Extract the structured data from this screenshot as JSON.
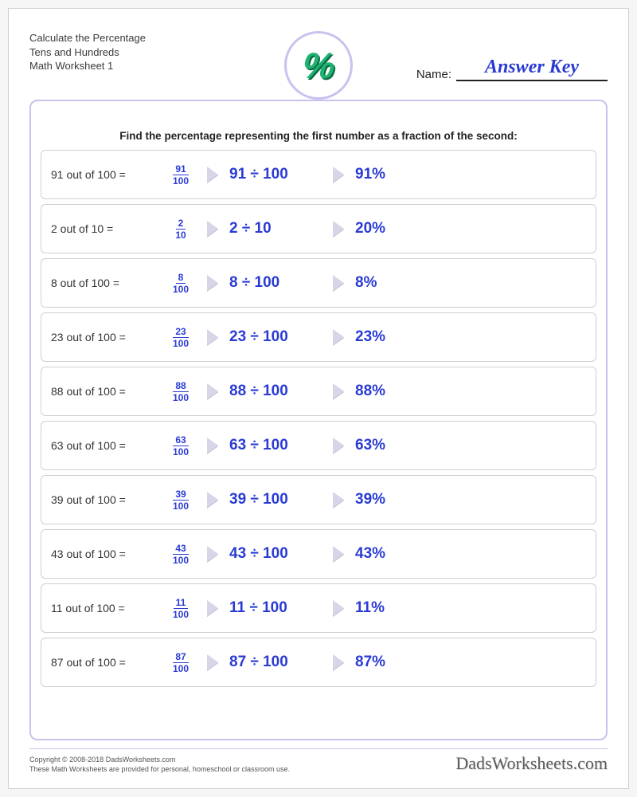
{
  "header": {
    "title_line1": "Calculate the Percentage",
    "title_line2": "Tens and Hundreds",
    "title_line3": "Math Worksheet 1",
    "name_label": "Name:",
    "answer_key": "Answer Key",
    "logo_symbol": "%"
  },
  "instruction": "Find the percentage representing the first number as a fraction of the second:",
  "colors": {
    "accent": "#2a3bd4",
    "frame_border": "#c9c2ee",
    "row_border": "#cfcfcf",
    "text": "#333333",
    "logo_green": "#1fb371"
  },
  "problems": [
    {
      "a": 91,
      "b": 100,
      "question": "91 out of 100 =",
      "division": "91 ÷ 100",
      "percent": "91%"
    },
    {
      "a": 2,
      "b": 10,
      "question": "2 out of 10 =",
      "division": "2 ÷ 10",
      "percent": "20%"
    },
    {
      "a": 8,
      "b": 100,
      "question": "8 out of 100 =",
      "division": "8 ÷ 100",
      "percent": "8%"
    },
    {
      "a": 23,
      "b": 100,
      "question": "23 out of 100 =",
      "division": "23 ÷ 100",
      "percent": "23%"
    },
    {
      "a": 88,
      "b": 100,
      "question": "88 out of 100 =",
      "division": "88 ÷ 100",
      "percent": "88%"
    },
    {
      "a": 63,
      "b": 100,
      "question": "63 out of 100 =",
      "division": "63 ÷ 100",
      "percent": "63%"
    },
    {
      "a": 39,
      "b": 100,
      "question": "39 out of 100 =",
      "division": "39 ÷ 100",
      "percent": "39%"
    },
    {
      "a": 43,
      "b": 100,
      "question": "43 out of 100 =",
      "division": "43 ÷ 100",
      "percent": "43%"
    },
    {
      "a": 11,
      "b": 100,
      "question": "11 out of 100 =",
      "division": "11 ÷ 100",
      "percent": "11%"
    },
    {
      "a": 87,
      "b": 100,
      "question": "87 out of 100 =",
      "division": "87 ÷ 100",
      "percent": "87%"
    }
  ],
  "footer": {
    "copyright": "Copyright © 2008-2018 DadsWorksheets.com",
    "note": "These Math Worksheets are provided for personal, homeschool or classroom use.",
    "brand": "DadsWorksheets.com"
  }
}
